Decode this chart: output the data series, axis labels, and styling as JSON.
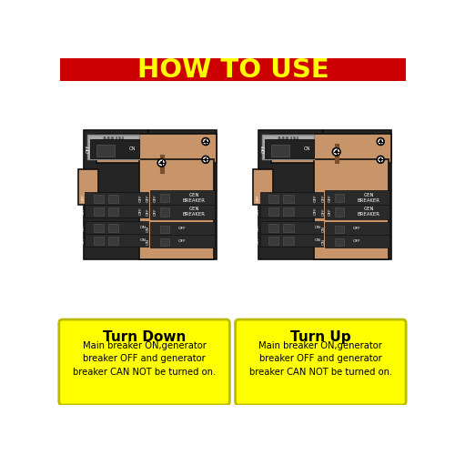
{
  "title": "HOW TO USE",
  "title_bg": "#cc0000",
  "title_color": "#ffff00",
  "bg_color": "#ffffff",
  "panel_bg": "#252525",
  "interlock_color": "#c8956a",
  "main_breaker_bg": "#aaaaaa",
  "label_bg": "#ffff00",
  "label_text_color": "#000000",
  "screw_fill": "#ffffff",
  "screw_border": "#000000",
  "slider_color": "#7a4f2e",
  "left_label": "Turn Down",
  "right_label": "Turn Up",
  "desc": "Main breaker ON,generator\nbreaker OFF and generator\nbreaker CAN NOT be turned on."
}
